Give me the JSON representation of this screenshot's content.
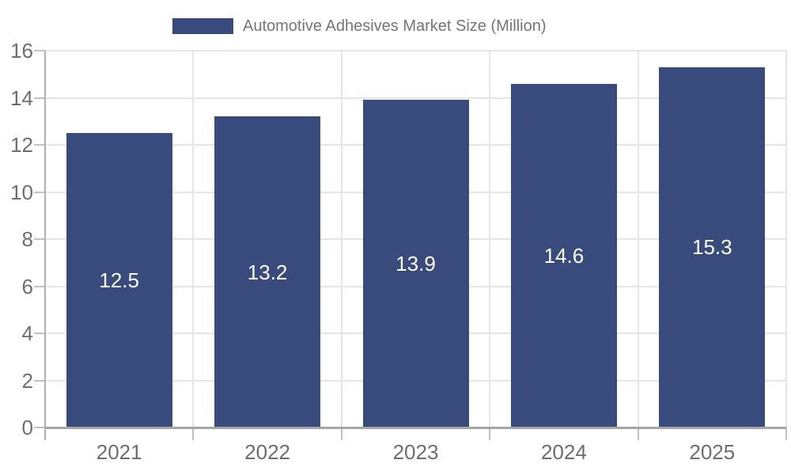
{
  "chart_data": {
    "type": "bar",
    "title": "Automotive Adhesives Market Size (Million)",
    "legend": [
      "Automotive Adhesives Market Size (Million)"
    ],
    "legend_position": "top-center",
    "categories": [
      "2021",
      "2022",
      "2023",
      "2024",
      "2025"
    ],
    "values": [
      12.5,
      13.2,
      13.9,
      14.6,
      15.3
    ],
    "data_labels": [
      "12.5",
      "13.2",
      "13.9",
      "14.6",
      "15.3"
    ],
    "xlabel": "",
    "ylabel": "",
    "ylim": [
      0,
      16
    ],
    "yticks": [
      0,
      2,
      4,
      6,
      8,
      10,
      12,
      14,
      16
    ],
    "grid": true,
    "colors": {
      "bar": "#394A7C",
      "bar_value_text": "#ffffff",
      "axis_text": "#6e6e6e",
      "legend_text": "#757575",
      "gridline": "#e5e5e5",
      "axis_line": "#a6a6a6",
      "y_axis_line": "#b0b0b0",
      "tick": "#c2c2c2",
      "background": "#ffffff"
    }
  }
}
